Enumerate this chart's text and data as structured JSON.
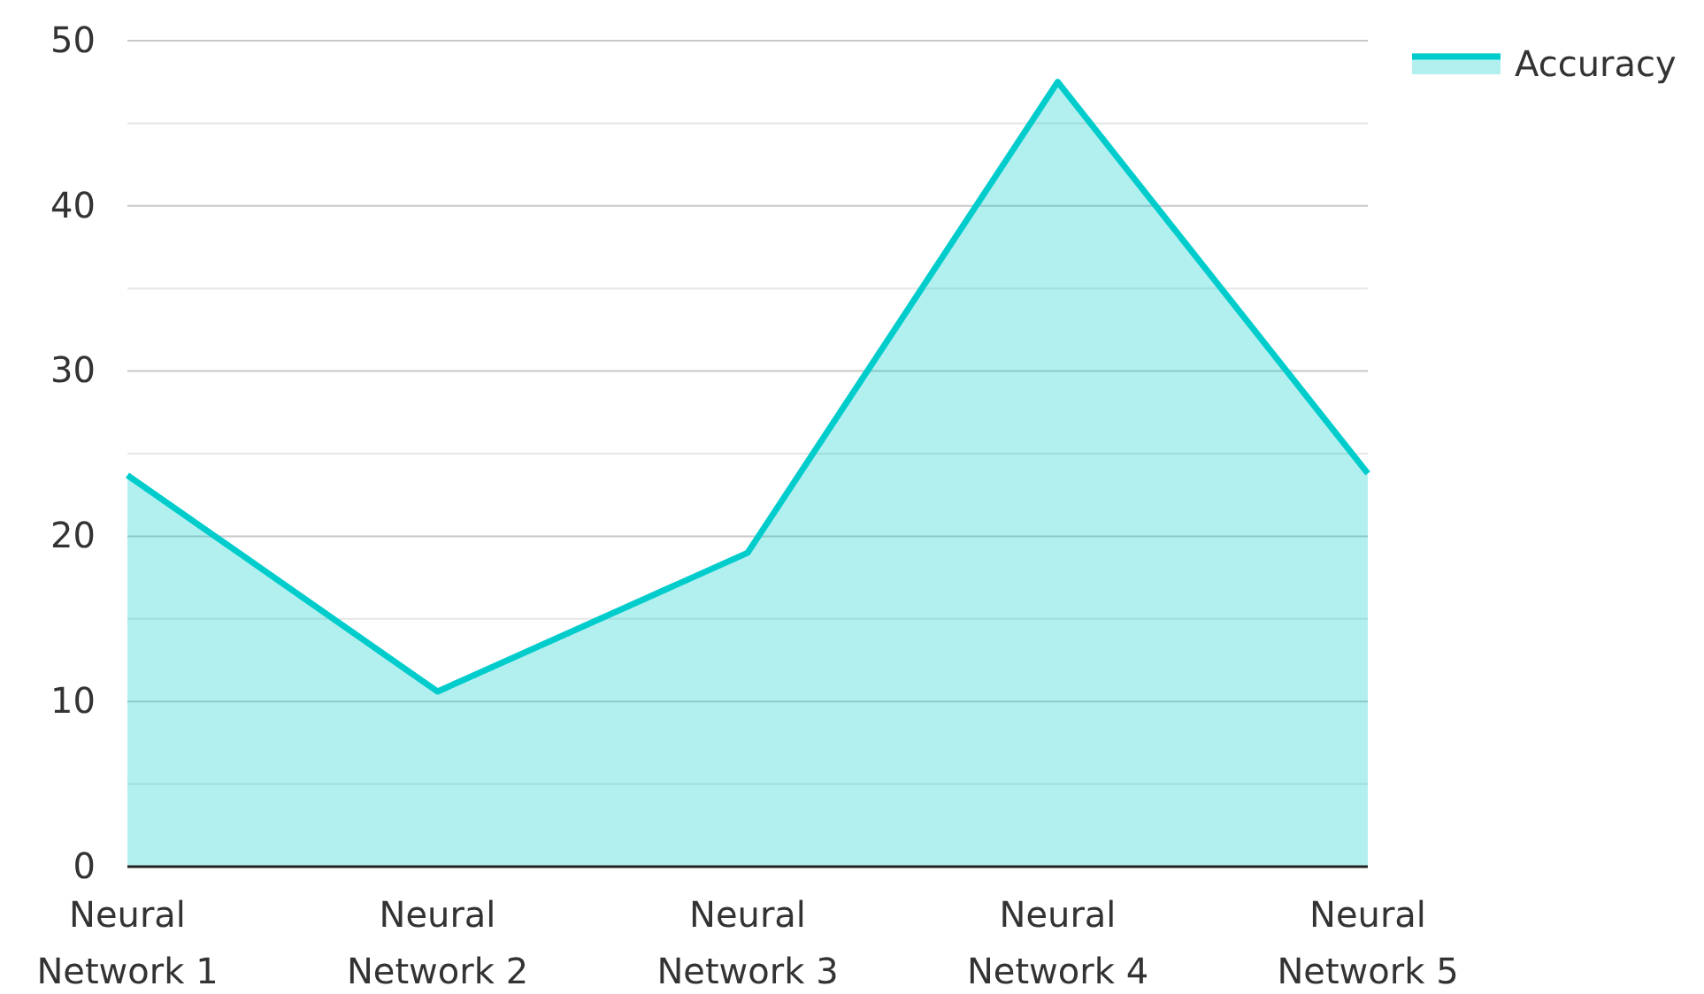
{
  "chart_data": {
    "type": "area",
    "categories": [
      "Neural Network 1",
      "Neural Network 2",
      "Neural Network 3",
      "Neural Network 4",
      "Neural Network 5"
    ],
    "series": [
      {
        "name": "Accuracy",
        "color": "#00cccc",
        "values": [
          23.7,
          10.6,
          19.0,
          47.5,
          23.8
        ]
      }
    ],
    "ylim": [
      0,
      50
    ],
    "yticks": [
      0,
      {
        "value": 5,
        "label": null
      },
      10,
      {
        "value": 15,
        "label": null
      },
      20,
      {
        "value": 25,
        "label": null
      },
      30,
      {
        "value": 35,
        "label": null
      },
      40,
      {
        "value": 45,
        "label": null
      },
      50
    ],
    "grid": "y",
    "legend": "top right"
  }
}
